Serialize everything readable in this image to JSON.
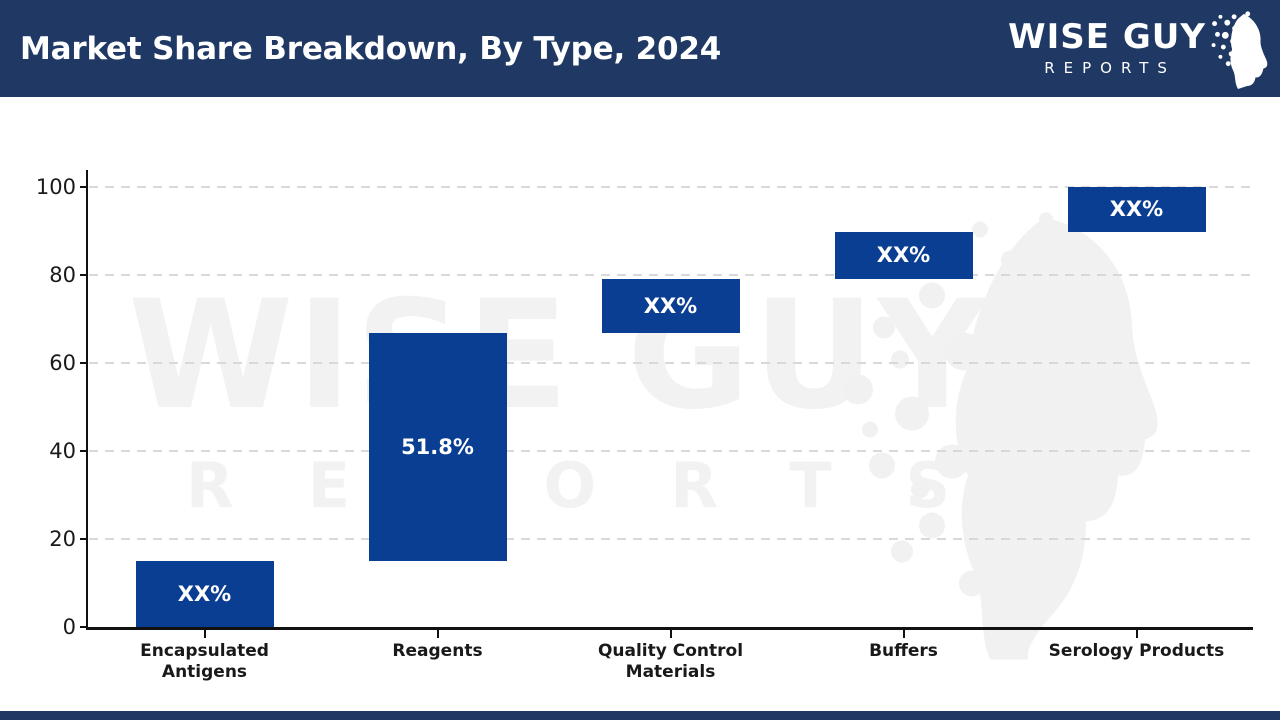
{
  "header": {
    "title": "Market Share Breakdown, By Type, 2024",
    "bg_color": "#1f3864",
    "logo": {
      "line1": "WISE GUY",
      "line2": "REPORTS"
    }
  },
  "watermark": {
    "line1": "WISE GUY",
    "line2": "REPORTS"
  },
  "chart_data": {
    "type": "bar",
    "subtype": "waterfall",
    "title": "Market Share Breakdown, By Type, 2024",
    "categories": [
      "Encapsulated Antigens",
      "Reagents",
      "Quality Control Materials",
      "Buffers",
      "Serology Products"
    ],
    "label_lines": [
      [
        "Encapsulated",
        "Antigens"
      ],
      [
        "Reagents"
      ],
      [
        "Quality Control",
        "Materials"
      ],
      [
        "Buffers"
      ],
      [
        "Serology Products"
      ]
    ],
    "segments": [
      [
        0,
        15
      ],
      [
        15,
        66.8
      ],
      [
        66.8,
        79.2
      ],
      [
        79.2,
        89.8
      ],
      [
        89.8,
        100
      ]
    ],
    "values": [
      15,
      51.8,
      12.4,
      10.6,
      10.2
    ],
    "bar_labels": [
      "XX%",
      "51.8%",
      "XX%",
      "XX%",
      "XX%"
    ],
    "ylim": [
      0,
      100
    ],
    "yticks": [
      0,
      20,
      40,
      60,
      80,
      100
    ],
    "xlabel": "",
    "ylabel": "",
    "grid": "horizontal-dashed",
    "legend": "none",
    "bar_color": "#0a3e92",
    "bar_label_color": "#ffffff",
    "axis_color": "#111111",
    "grid_color": "#d9d9d9"
  },
  "footer": {
    "bg_color": "#1f3864"
  }
}
